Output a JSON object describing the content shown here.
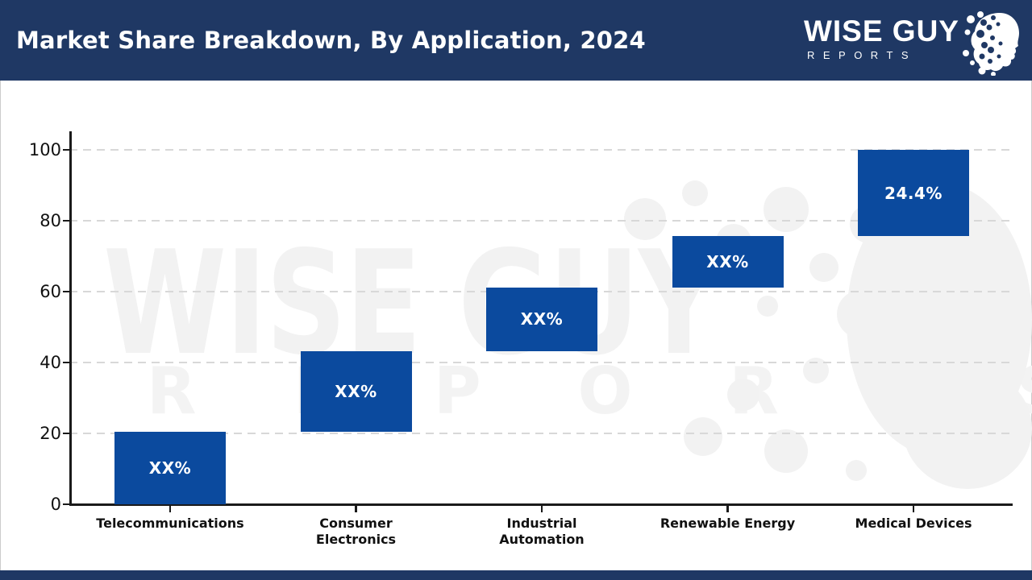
{
  "header": {
    "title": "Market Share Breakdown, By Application, 2024",
    "logo": {
      "primary": "WISE GUY",
      "secondary": "REPORTS"
    }
  },
  "watermark": {
    "line1": "WISE GUY",
    "line2": "R E P O R T S"
  },
  "chart_data": {
    "type": "bar",
    "subtype": "waterfall",
    "title": "Market Share Breakdown, By Application, 2024",
    "categories": [
      "Telecommunications",
      "Consumer\nElectronics",
      "Industrial\nAutomation",
      "Renewable Energy",
      "Medical Devices"
    ],
    "bars": [
      {
        "category": "Telecommunications",
        "start": 0.0,
        "end": 20.4,
        "value": 20.4,
        "label": "XX%"
      },
      {
        "category": "Consumer Electronics",
        "start": 20.4,
        "end": 43.2,
        "value": 22.8,
        "label": "XX%"
      },
      {
        "category": "Industrial Automation",
        "start": 43.2,
        "end": 61.2,
        "value": 18.0,
        "label": "XX%"
      },
      {
        "category": "Renewable Energy",
        "start": 61.2,
        "end": 75.6,
        "value": 14.4,
        "label": "XX%"
      },
      {
        "category": "Medical Devices",
        "start": 75.6,
        "end": 100.0,
        "value": 24.4,
        "label": "24.4%"
      }
    ],
    "xlabel": "",
    "ylabel": "",
    "ylim": [
      0,
      100
    ],
    "yticks": [
      0,
      20,
      40,
      60,
      80,
      100
    ],
    "grid": "dashed-horizontal",
    "legend": "none"
  },
  "colors": {
    "header_bg": "#1f3864",
    "footer_bg": "#1f3864",
    "bar": "#0b4a9e",
    "grid": "#d8d8d8",
    "axis": "#1a1a1a",
    "bar_label": "#ffffff",
    "watermark": "#f2f2f2"
  }
}
